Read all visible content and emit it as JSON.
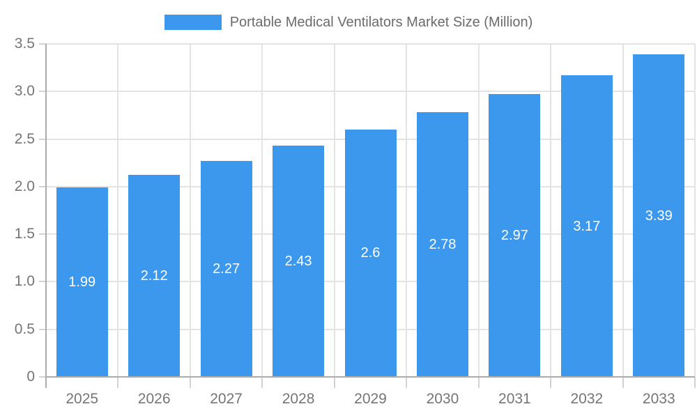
{
  "chart_data": {
    "type": "bar",
    "title": "Portable Medical Ventilators Market Size (Million)",
    "categories": [
      "2025",
      "2026",
      "2027",
      "2028",
      "2029",
      "2030",
      "2031",
      "2032",
      "2033"
    ],
    "values": [
      1.99,
      2.12,
      2.27,
      2.43,
      2.6,
      2.78,
      2.97,
      3.17,
      3.39
    ],
    "value_labels": [
      "1.99",
      "2.12",
      "2.27",
      "2.43",
      "2.6",
      "2.78",
      "2.97",
      "3.17",
      "3.39"
    ],
    "y_ticks": [
      {
        "label": "0",
        "value": 0
      },
      {
        "label": "0.5",
        "value": 0.5
      },
      {
        "label": "1.0",
        "value": 1
      },
      {
        "label": "1.5",
        "value": 1.5
      },
      {
        "label": "2.0",
        "value": 2
      },
      {
        "label": "2.5",
        "value": 2.5
      },
      {
        "label": "3.0",
        "value": 3
      },
      {
        "label": "3.5",
        "value": 3.5
      }
    ],
    "ylim": [
      0,
      3.5
    ],
    "xlabel": "",
    "ylabel": "",
    "grid": true,
    "legend_position": "top",
    "value_label_position": "inside-center"
  },
  "colors": {
    "bar": "#3B98ED",
    "legend_text": "#6B6B6B",
    "axis_text": "#757575",
    "bar_label_text": "#FFFFFF",
    "gridline": "#E3E3E3",
    "axis_line": "#ACACAC",
    "tick": "#D2D2D2",
    "background": "#FFFFFF"
  }
}
